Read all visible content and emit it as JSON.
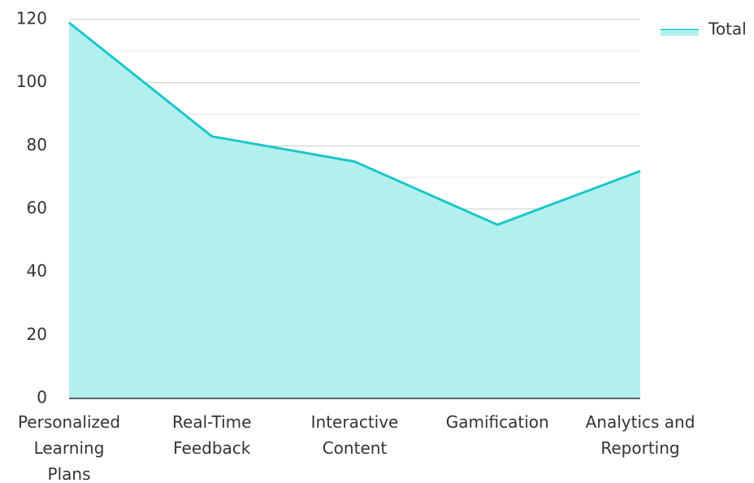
{
  "chart_data": {
    "type": "area",
    "categories": [
      "Personalized Learning Plans",
      "Real-Time Feedback",
      "Interactive Content",
      "Gamification",
      "Analytics and Reporting"
    ],
    "series": [
      {
        "name": "Total",
        "color": "#1cc7c9",
        "fill": "#b2f0ee",
        "values": [
          119,
          83,
          75,
          55,
          72
        ]
      }
    ],
    "ylim": [
      0,
      120
    ],
    "yticks": [
      0,
      20,
      40,
      60,
      80,
      100,
      120
    ],
    "grid": true,
    "legend": "top-right"
  }
}
